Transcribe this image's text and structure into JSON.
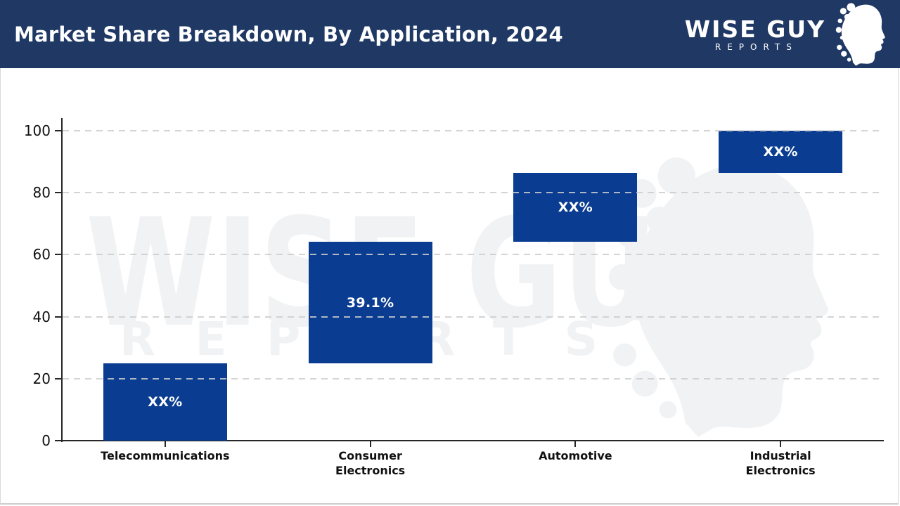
{
  "header": {
    "title": "Market Share Breakdown, By Application, 2024",
    "logo": {
      "wordmark": "WISE GUY",
      "sub": "REPORTS"
    }
  },
  "watermark": {
    "wordmark": "WISE GUY",
    "sub": "REPORTS"
  },
  "theme": {
    "header_bg": "#1f3864",
    "bar_color": "#0a3d91",
    "axis_color": "#262626",
    "grid_color": "#d0d0d0",
    "watermark_color": "#f1f2f4"
  },
  "chart_data": {
    "type": "bar",
    "subtype": "waterfall-stacked-share",
    "title": "Market Share Breakdown, By Application, 2024",
    "categories": [
      "Telecommunications",
      "Consumer Electronics",
      "Automotive",
      "Industrial Electronics"
    ],
    "bars": [
      {
        "category_lines": [
          "Telecommunications"
        ],
        "start": 0,
        "end": 25,
        "value_label": "XX%"
      },
      {
        "category_lines": [
          "Consumer",
          "Electronics"
        ],
        "start": 25,
        "end": 64.1,
        "value_label": "39.1%"
      },
      {
        "category_lines": [
          "Automotive"
        ],
        "start": 64.1,
        "end": 86.4,
        "value_label": "XX%"
      },
      {
        "category_lines": [
          "Industrial",
          "Electronics"
        ],
        "start": 86.4,
        "end": 100,
        "value_label": "XX%"
      }
    ],
    "y_ticks": [
      0,
      20,
      40,
      60,
      80,
      100
    ],
    "ylim": [
      0,
      100
    ],
    "xlabel": "",
    "ylabel": "",
    "grid": "horizontal-dashed",
    "legend": "none"
  }
}
